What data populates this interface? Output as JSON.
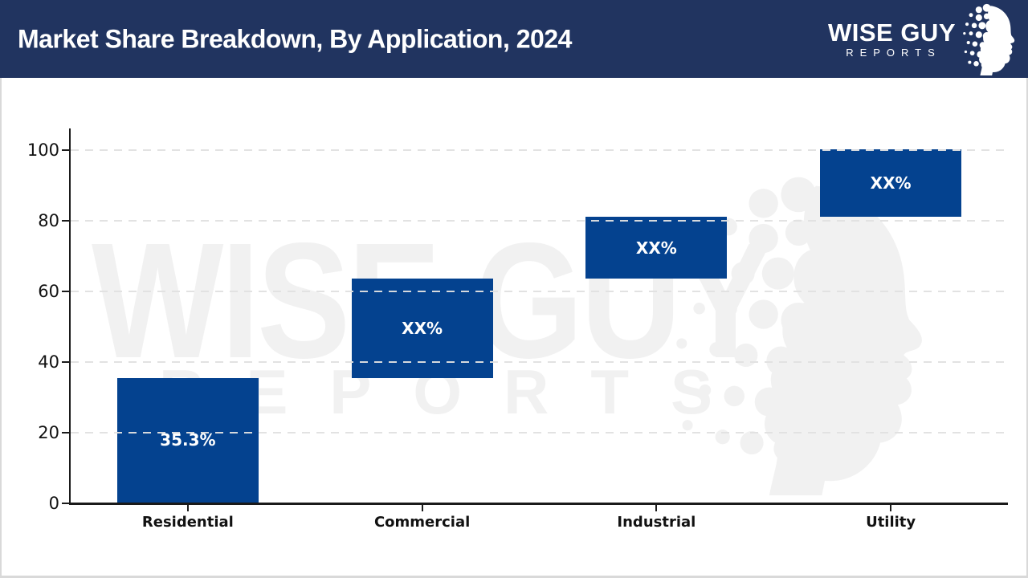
{
  "header": {
    "title": "Market Share Breakdown, By Application, 2024",
    "brand": {
      "name": "WISE GUY",
      "sub": "REPORTS"
    }
  },
  "watermark": {
    "line1": "WISE GUY",
    "line2": "REPORTS"
  },
  "chart_data": {
    "type": "bar",
    "subtype": "floating-waterfall",
    "title": "Market Share Breakdown, By Application, 2024",
    "categories": [
      "Residential",
      "Commercial",
      "Industrial",
      "Utility"
    ],
    "segments": [
      {
        "category": "Residential",
        "start": 0,
        "end": 35.3,
        "value": 35.3,
        "label": "35.3%"
      },
      {
        "category": "Commercial",
        "start": 35.3,
        "end": 63.3,
        "value": 28.0,
        "label": "XX%"
      },
      {
        "category": "Industrial",
        "start": 63.3,
        "end": 81.0,
        "value": 17.7,
        "label": "XX%"
      },
      {
        "category": "Utility",
        "start": 81.0,
        "end": 100.0,
        "value": 19.0,
        "label": "XX%"
      }
    ],
    "ylim": [
      0,
      100
    ],
    "yticks": [
      0,
      20,
      40,
      60,
      80,
      100
    ],
    "grid": "horizontal-dashed",
    "legend": "none"
  },
  "colors": {
    "header_bg": "#213460",
    "bar": "#04428f",
    "bar_label": "#ffffff",
    "grid": "#e1e1e1",
    "axis": "#1a1a1a",
    "watermark": "#f1f1f1",
    "border": "#d9d9d9"
  }
}
